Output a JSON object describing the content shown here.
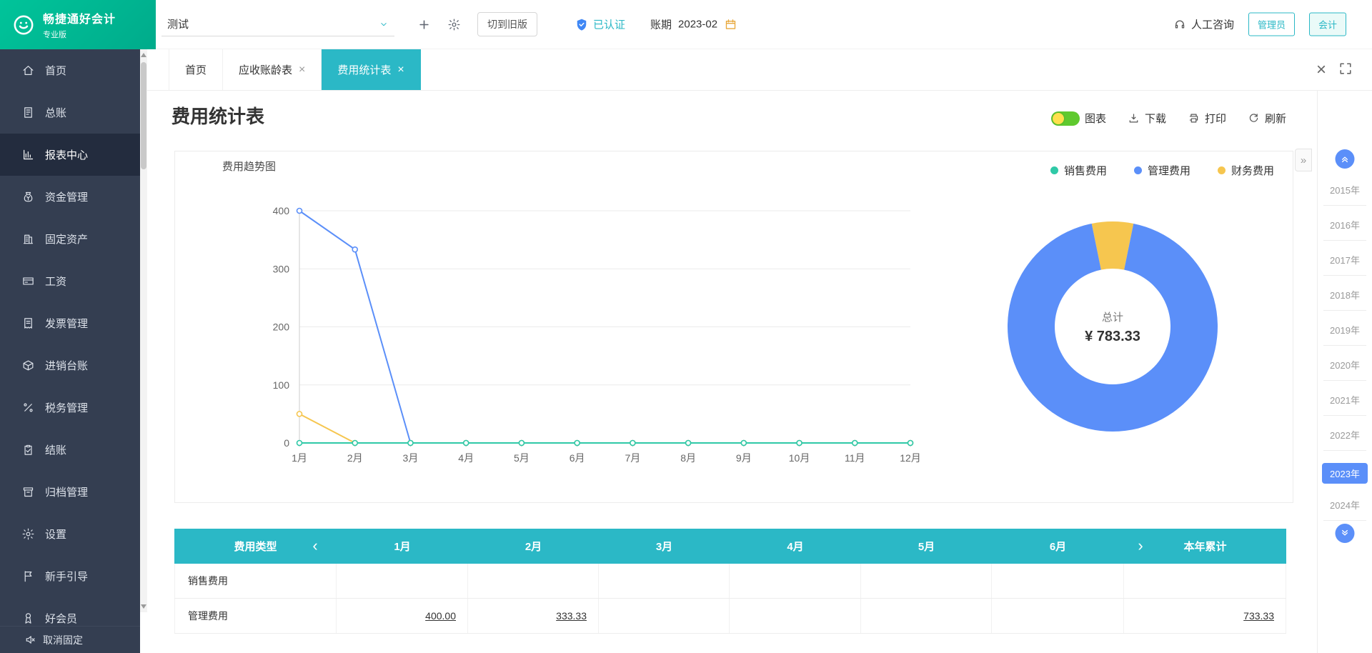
{
  "header": {
    "logo_title": "畅捷通好会计",
    "logo_badge": "专业版",
    "account_set": "测试",
    "switch_old_label": "切到旧版",
    "certified_label": "已认证",
    "period_label": "账期",
    "period_value": "2023-02",
    "consult_label": "人工咨询",
    "admin_button": "管理员",
    "accountant_button": "会计"
  },
  "sidebar": {
    "items": [
      {
        "name": "home",
        "icon": "home-icon",
        "label": "首页",
        "active": false
      },
      {
        "name": "general-ledger",
        "icon": "ledger-icon",
        "label": "总账",
        "active": false
      },
      {
        "name": "report-center",
        "icon": "report-icon",
        "label": "报表中心",
        "active": true
      },
      {
        "name": "fund-management",
        "icon": "money-icon",
        "label": "资金管理",
        "active": false
      },
      {
        "name": "fixed-assets",
        "icon": "building-icon",
        "label": "固定资产",
        "active": false
      },
      {
        "name": "payroll",
        "icon": "salary-icon",
        "label": "工资",
        "active": false
      },
      {
        "name": "invoice-management",
        "icon": "invoice-icon",
        "label": "发票管理",
        "active": false
      },
      {
        "name": "purchase-sales-ledger",
        "icon": "inventory-icon",
        "label": "进销台账",
        "active": false
      },
      {
        "name": "tax-management",
        "icon": "tax-icon",
        "label": "税务管理",
        "active": false
      },
      {
        "name": "closing",
        "icon": "closing-icon",
        "label": "结账",
        "active": false
      },
      {
        "name": "archive-management",
        "icon": "archive-icon",
        "label": "归档管理",
        "active": false
      },
      {
        "name": "settings",
        "icon": "gear-icon",
        "label": "设置",
        "active": false
      },
      {
        "name": "beginner-guide",
        "icon": "guide-icon",
        "label": "新手引导",
        "active": false
      },
      {
        "name": "member",
        "icon": "member-icon",
        "label": "好会员",
        "active": false
      }
    ],
    "unpin_label": "取消固定"
  },
  "tabs": [
    {
      "name": "home",
      "label": "首页",
      "closable": false,
      "active": false
    },
    {
      "name": "receivables-aging",
      "label": "应收账龄表",
      "closable": true,
      "active": false
    },
    {
      "name": "expense-statistics",
      "label": "费用统计表",
      "closable": true,
      "active": true
    }
  ],
  "page": {
    "title": "费用统计表",
    "chart_toggle_label": "图表",
    "chart_toggle_on": true,
    "download_label": "下载",
    "print_label": "打印",
    "refresh_label": "刷新"
  },
  "chart_data": [
    {
      "type": "line",
      "title": "费用趋势图",
      "x": [
        "1月",
        "2月",
        "3月",
        "4月",
        "5月",
        "6月",
        "7月",
        "8月",
        "9月",
        "10月",
        "11月",
        "12月"
      ],
      "series": [
        {
          "name": "销售费用",
          "color": "#2fc9a7",
          "values": [
            0,
            0,
            0,
            0,
            0,
            0,
            0,
            0,
            0,
            0,
            0,
            0
          ]
        },
        {
          "name": "管理费用",
          "color": "#5b8ff9",
          "values": [
            400,
            333.33,
            0,
            0,
            0,
            0,
            0,
            0,
            0,
            0,
            0,
            0
          ]
        },
        {
          "name": "财务费用",
          "color": "#f6c64f",
          "values": [
            50,
            0,
            0,
            0,
            0,
            0,
            0,
            0,
            0,
            0,
            0,
            0
          ]
        }
      ],
      "ylim": [
        0,
        400
      ],
      "yticks": [
        0,
        100,
        200,
        300,
        400
      ],
      "grid": true,
      "legend_position": "top-right"
    },
    {
      "type": "pie",
      "center_label": "总计",
      "center_value": "¥ 783.33",
      "total": 783.33,
      "start_angle_deg": -101.5,
      "slices": [
        {
          "name": "财务费用",
          "value": 50,
          "color": "#f6c64f"
        },
        {
          "name": "管理费用",
          "value": 733.33,
          "color": "#5b8ff9"
        },
        {
          "name": "销售费用",
          "value": 0,
          "color": "#2fc9a7"
        }
      ]
    }
  ],
  "table": {
    "columns": [
      "费用类型",
      "1月",
      "2月",
      "3月",
      "4月",
      "5月",
      "6月",
      "本年累计"
    ],
    "rows": [
      {
        "type": "销售费用",
        "values": [
          "",
          "",
          "",
          "",
          "",
          "",
          ""
        ]
      },
      {
        "type": "管理费用",
        "values": [
          "400.00",
          "333.33",
          "",
          "",
          "",
          "",
          "733.33"
        ]
      }
    ]
  },
  "year_panel": {
    "years": [
      "2015年",
      "2016年",
      "2017年",
      "2018年",
      "2019年",
      "2020年",
      "2021年",
      "2022年",
      "2023年",
      "2024年"
    ],
    "selected": "2023年"
  },
  "icons": {
    "header": [
      "plus-icon",
      "gear-icon",
      "shield-icon",
      "calendar-icon",
      "headset-icon",
      "chevron-down-icon"
    ],
    "controls": [
      "download-icon",
      "printer-icon",
      "refresh-icon"
    ],
    "tab_bar": [
      "close-icon",
      "fullscreen-icon"
    ],
    "year_panel": [
      "chevrons-up-icon",
      "chevrons-down-icon",
      "collapse-right-icon"
    ],
    "sidebar_footer": [
      "unpin-icon"
    ]
  }
}
